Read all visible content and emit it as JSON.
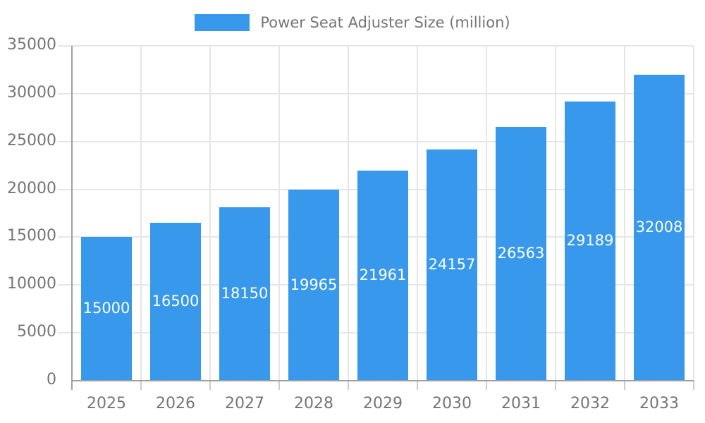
{
  "legend": {
    "label": "Power Seat Adjuster Size (million)"
  },
  "chart_data": {
    "type": "bar",
    "title": "Power Seat Adjuster Size (million)",
    "categories": [
      "2025",
      "2026",
      "2027",
      "2028",
      "2029",
      "2030",
      "2031",
      "2032",
      "2033"
    ],
    "values": [
      15000,
      16500,
      18150,
      19965,
      21961,
      24157,
      26563,
      29189,
      32008
    ],
    "value_labels": [
      "15000",
      "16500",
      "18150",
      "19965",
      "21961",
      "24157",
      "26563",
      "29189",
      "32008"
    ],
    "xlabel": "",
    "ylabel": "",
    "ylim": [
      0,
      35000
    ],
    "yticks": [
      0,
      5000,
      10000,
      15000,
      20000,
      25000,
      30000,
      35000
    ],
    "grid": true,
    "legend_position": "top",
    "colors": {
      "bar": "#3898ec",
      "grid": "#e6e6e6",
      "axis": "#a0a0a0",
      "tick": "#cccccc",
      "text": "#757575",
      "value_label": "#ffffff",
      "background": "#ffffff"
    }
  }
}
